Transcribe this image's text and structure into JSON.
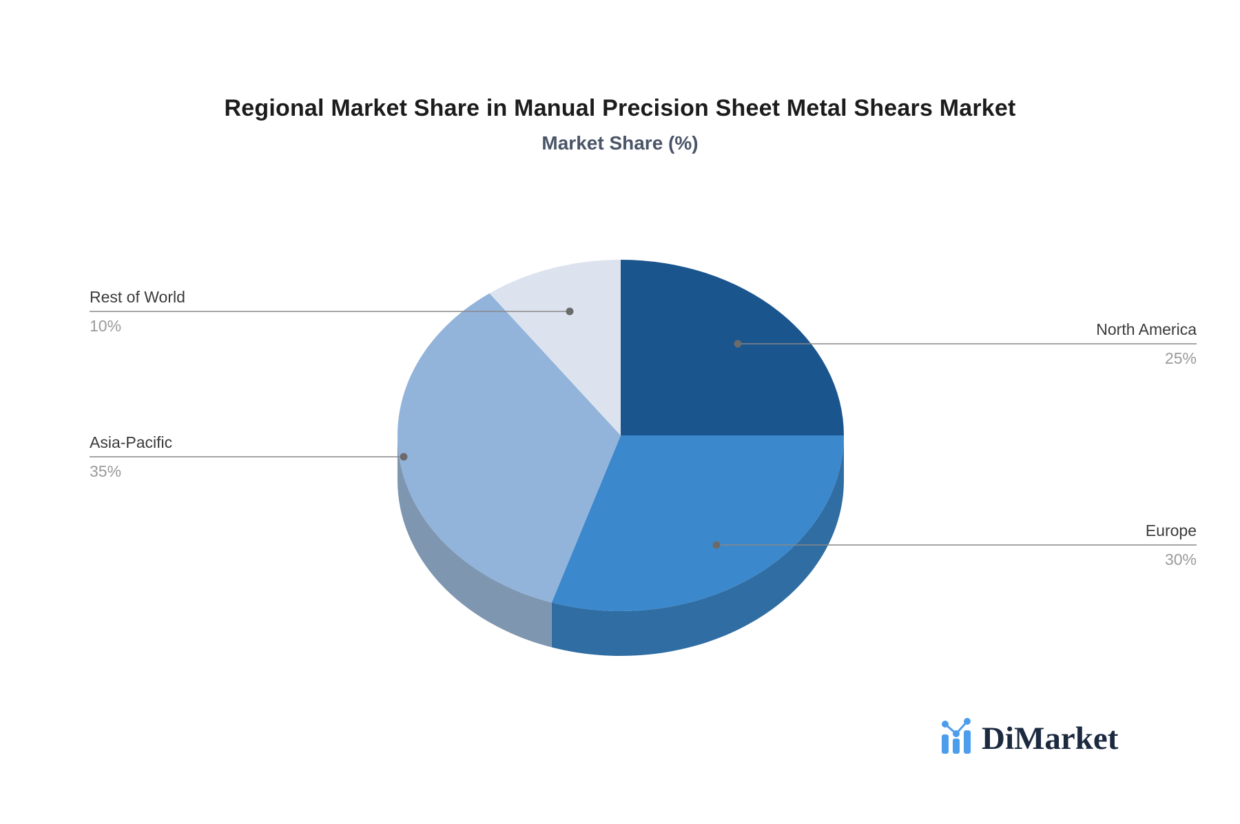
{
  "title": "Regional Market Share in Manual Precision Sheet Metal Shears Market",
  "subtitle": "Market Share (%)",
  "chart_data": {
    "type": "pie",
    "title": "Regional Market Share in Manual Precision Sheet Metal Shears Market",
    "subtitle": "Market Share (%)",
    "value_unit": "%",
    "style": "3d-extruded-pie",
    "rotation": "clockwise-from-top",
    "legend_position": "callout-labels",
    "categories": [
      "North America",
      "Europe",
      "Asia-Pacific",
      "Rest of World"
    ],
    "values": [
      25,
      30,
      35,
      10
    ],
    "slices": [
      {
        "label": "North America",
        "value": 25,
        "display_value": "25%",
        "color": "#1b558e",
        "side_color": "#174a7d",
        "callout_side": "right"
      },
      {
        "label": "Europe",
        "value": 30,
        "display_value": "30%",
        "color": "#3c88cc",
        "side_color": "#2f6da3",
        "callout_side": "right"
      },
      {
        "label": "Asia-Pacific",
        "value": 35,
        "display_value": "35%",
        "color": "#92b4da",
        "side_color": "#7e96af",
        "callout_side": "left"
      },
      {
        "label": "Rest of World",
        "value": 10,
        "display_value": "10%",
        "color": "#dce3ef",
        "side_color": "#b9c4d4",
        "callout_side": "left"
      }
    ],
    "colors": {
      "label_text": "#3a3a3a",
      "value_text": "#9a9a9a",
      "leader_line": "#878787",
      "leader_dot": "#6b6b6b",
      "title_text": "#1c1c1c",
      "subtitle_text": "#4a5568"
    }
  },
  "brand": {
    "name": "DiMarket",
    "icon": "bar-line-chart-icon",
    "icon_color": "#4d9ded",
    "text_color": "#1c2a40"
  }
}
